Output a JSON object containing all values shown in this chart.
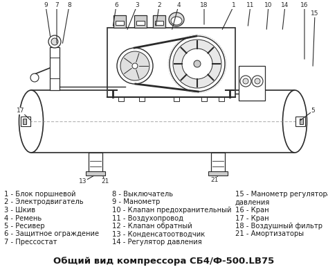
{
  "title": "Общий вид компрессора СБ4/Ф-500.LB75",
  "bg": "#ffffff",
  "lc": "#2a2a2a",
  "tc": "#1a1a1a",
  "legend_col1": [
    "1 - Блок поршневой",
    "2 - Электродвигатель",
    "3 - Шкив",
    "4 - Ремень",
    "5 - Ресивер",
    "6 - Защитное ограждение",
    "7 - Прессостат"
  ],
  "legend_col2": [
    "8 - Выключатель",
    "9 - Манометр",
    "10 - Клапан предохранительный",
    "11 - Воздухопровод",
    "12 - Клапан обратный",
    "13 - Конденсатоотводчик",
    "14 - Регулятор давления"
  ],
  "legend_col3_line1": "15 - Манометр регулятора",
  "legend_col3_line2": "давления",
  "legend_col3_rest": [
    "16 - Кран",
    "17 - Кран",
    "18 - Воздушный фильтр",
    "21 - Амортизаторы"
  ],
  "fs_legend": 7.2,
  "fs_title": 9.5,
  "fs_label": 6.5
}
